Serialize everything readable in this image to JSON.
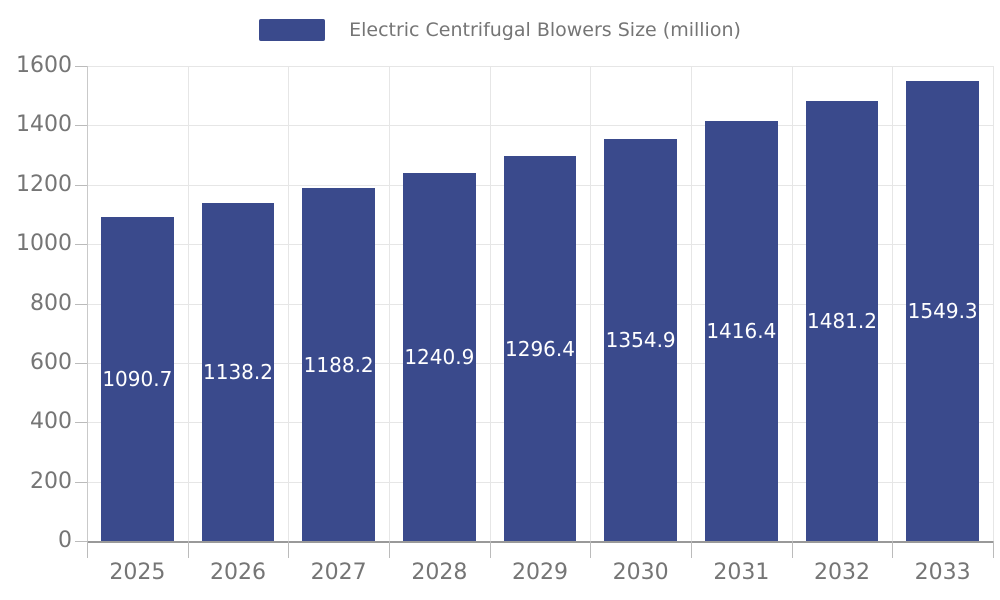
{
  "legend": {
    "label": "Electric Centrifugal Blowers Size (million)"
  },
  "chart_data": {
    "type": "bar",
    "title": "Electric Centrifugal Blowers Size (million)",
    "series_name": "Electric Centrifugal Blowers Size (million)",
    "categories": [
      "2025",
      "2026",
      "2027",
      "2028",
      "2029",
      "2030",
      "2031",
      "2032",
      "2033"
    ],
    "values": [
      1090.7,
      1138.2,
      1188.2,
      1240.9,
      1296.4,
      1354.9,
      1416.4,
      1481.2,
      1549.3
    ],
    "value_labels": [
      "1090.7",
      "1138.2",
      "1188.2",
      "1240.9",
      "1296.4",
      "1354.9",
      "1416.4",
      "1481.2",
      "1549.3"
    ],
    "xlabel": "",
    "ylabel": "",
    "ylim": [
      0,
      1600
    ],
    "yticks": [
      0,
      200,
      400,
      600,
      800,
      1000,
      1200,
      1400,
      1600
    ],
    "grid": true,
    "legend_position": "top-center",
    "bar_label_position": "inside-center",
    "colors": {
      "bar": "#3A4A8C",
      "bar_label": "#FFFFFF",
      "axis_text": "#757575",
      "grid_line": "#E6E6E6",
      "axis_line": "#999999",
      "tick": "#BBBBBB",
      "background": "#FFFFFF"
    }
  }
}
